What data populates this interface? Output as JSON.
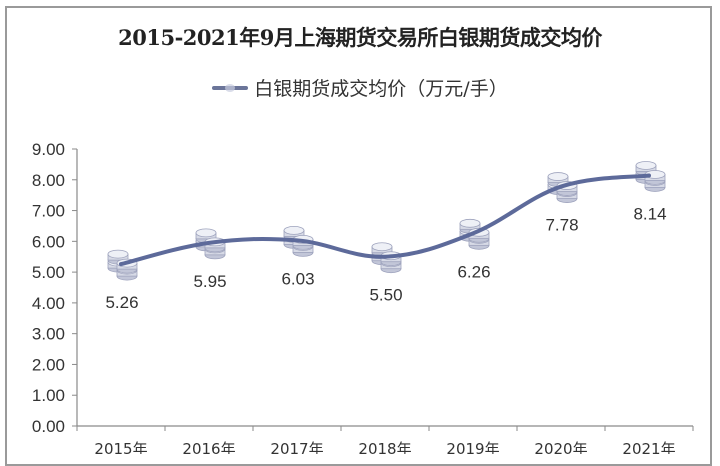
{
  "title": "2015-2021年9月上海期货交易所白银期货成交均价",
  "legend": {
    "label": "白银期货成交均价（万元/手）",
    "marker_icon": "coin-stack-icon"
  },
  "colors": {
    "line": "#5d6a9a",
    "axis": "#8a8a8a",
    "frame": "#9a9a9a",
    "marker": "#c6cadb"
  },
  "chart_data": {
    "type": "line",
    "title": "2015-2021年9月上海期货交易所白银期货成交均价",
    "xlabel": "",
    "ylabel": "",
    "categories": [
      "2015年",
      "2016年",
      "2017年",
      "2018年",
      "2019年",
      "2020年",
      "2021年"
    ],
    "series": [
      {
        "name": "白银期货成交均价（万元/手）",
        "values": [
          5.26,
          5.95,
          6.03,
          5.5,
          6.26,
          7.78,
          8.14
        ],
        "data_labels": [
          "5.26",
          "5.95",
          "6.03",
          "5.50",
          "6.26",
          "7.78",
          "8.14"
        ]
      }
    ],
    "ylim": [
      0,
      9
    ],
    "y_ticks": [
      "0.00",
      "1.00",
      "2.00",
      "3.00",
      "4.00",
      "5.00",
      "6.00",
      "7.00",
      "8.00",
      "9.00"
    ],
    "grid": false,
    "legend_position": "top",
    "marker": "coin-stack"
  }
}
